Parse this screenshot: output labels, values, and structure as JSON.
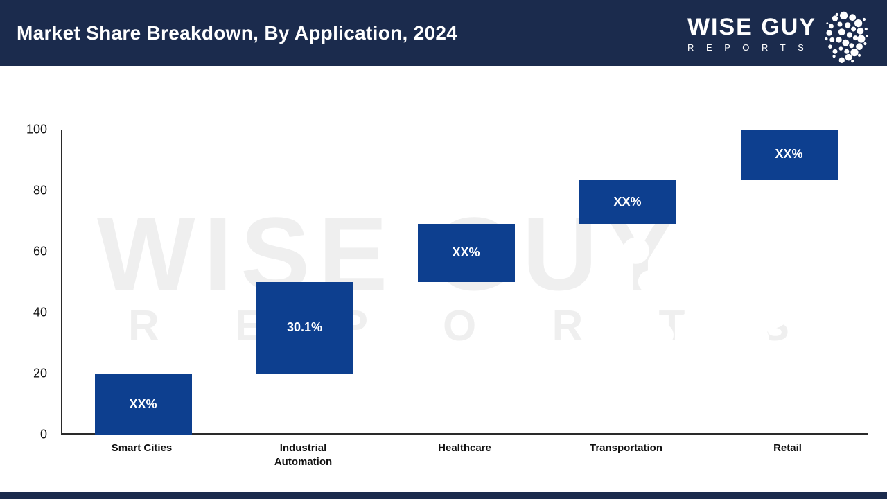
{
  "header": {
    "title": "Market Share Breakdown, By Application, 2024",
    "brand": {
      "line1": "WISE GUY",
      "line2": "R E P O R T S"
    }
  },
  "watermark": {
    "line1": "WISE GUY",
    "line2": "R E P O R T S"
  },
  "chart_data": {
    "type": "bar",
    "subtype": "waterfall",
    "title": "Market Share Breakdown, By Application, 2024",
    "categories": [
      "Smart Cities",
      "Industrial Automation",
      "Healthcare",
      "Transportation",
      "Retail"
    ],
    "bars": [
      {
        "category": "Smart Cities",
        "start": 0,
        "end": 20,
        "label": "XX%"
      },
      {
        "category": "Industrial Automation",
        "start": 20,
        "end": 50.1,
        "label": "30.1%"
      },
      {
        "category": "Healthcare",
        "start": 50.1,
        "end": 69,
        "label": "XX%"
      },
      {
        "category": "Transportation",
        "start": 69,
        "end": 83.7,
        "label": "XX%"
      },
      {
        "category": "Retail",
        "start": 83.7,
        "end": 100,
        "label": "XX%"
      }
    ],
    "ylim": [
      0,
      100
    ],
    "yticks": [
      0,
      20,
      40,
      60,
      80,
      100
    ],
    "grid": "horizontal-dashed",
    "legend": false,
    "xlabel": "",
    "ylabel": ""
  },
  "colors": {
    "header_bg": "#1b2b4d",
    "footer_bg": "#1b2b4d",
    "bar": "#0d3f8f",
    "bar_label": "#ffffff",
    "grid": "#dcdcdc",
    "axis": "#2a2a2a",
    "watermark_text": "#efefef"
  }
}
